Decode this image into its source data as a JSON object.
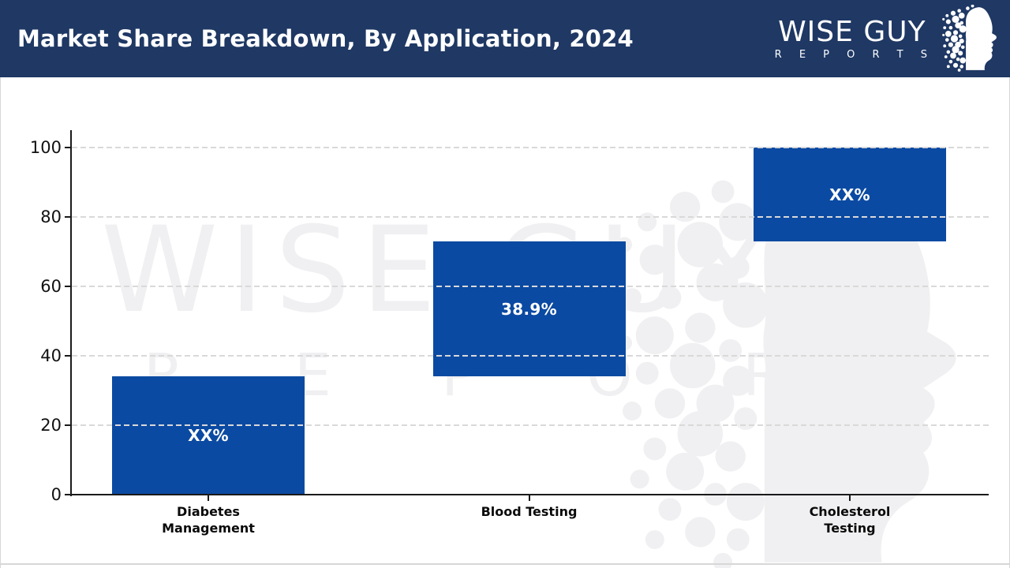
{
  "page": {
    "background": "#ffffff",
    "border_color": "#d7d7d7"
  },
  "header": {
    "bg_color": "#1f3864",
    "title": "Market Share Breakdown, By Application, 2024",
    "title_color": "#ffffff",
    "logo": {
      "wordmark": "WISE GUY",
      "subtext": "R E P O R T S",
      "color": "#ffffff"
    }
  },
  "watermark": {
    "wordmark": "WISE GUY",
    "subtext": "R E P O R T S",
    "color": "#f0f0f2"
  },
  "chart_data": {
    "type": "bar",
    "variant": "floating stacked segments (waterfall-style market share breakdown)",
    "title": "Market Share Breakdown, By Application, 2024",
    "categories": [
      "Diabetes Management",
      "Blood Testing",
      "Cholesterol Testing"
    ],
    "category_label_lines": [
      [
        "Diabetes",
        "Management"
      ],
      [
        "Blood Testing"
      ],
      [
        "Cholesterol",
        "Testing"
      ]
    ],
    "series": [
      {
        "name": "Market share (%)",
        "segments": [
          {
            "category": "Diabetes Management",
            "from": 0,
            "to": 34,
            "label": "XX%"
          },
          {
            "category": "Blood Testing",
            "from": 34,
            "to": 72.9,
            "label": "38.9%"
          },
          {
            "category": "Cholesterol Testing",
            "from": 72.9,
            "to": 100,
            "label": "XX%"
          }
        ]
      }
    ],
    "ylim": [
      0,
      100
    ],
    "yticks": [
      0,
      20,
      40,
      60,
      80,
      100
    ],
    "xlabel": "",
    "ylabel": "",
    "grid": {
      "horizontal": true,
      "style": "dashed",
      "color": "#d9d9d9",
      "above_bars": true
    },
    "legend": "none",
    "bar_color": "#0b4aa2",
    "bar_label_color": "#ffffff",
    "axis_color": "#1a1a1a",
    "tick_label_color": "#111111"
  }
}
